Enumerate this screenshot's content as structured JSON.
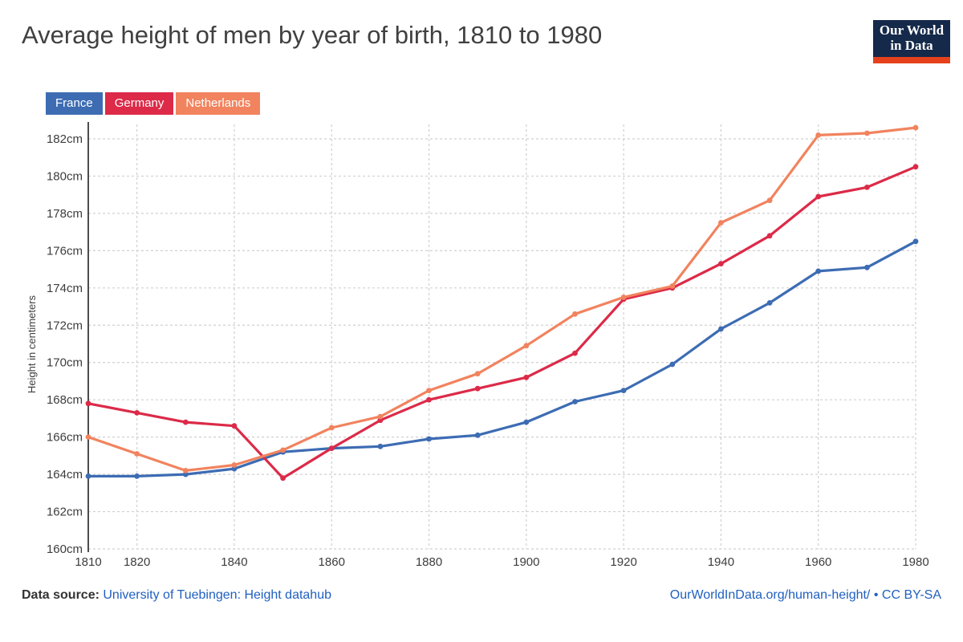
{
  "header": {
    "title": "Average height of men by year of birth, 1810 to 1980",
    "logo": {
      "line1": "Our World",
      "line2": "in Data",
      "bg_color": "#15294a",
      "bar_color": "#e5411c"
    }
  },
  "legend": {
    "items": [
      {
        "label": "France",
        "color": "#3d6cb3"
      },
      {
        "label": "Germany",
        "color": "#dc2a48"
      },
      {
        "label": "Netherlands",
        "color": "#f1835e"
      }
    ]
  },
  "chart_data": {
    "type": "line",
    "title": "Average height of men by year of birth, 1810 to 1980",
    "xlabel": "",
    "ylabel": "Height in centimeters",
    "x": [
      1810,
      1820,
      1830,
      1840,
      1850,
      1860,
      1870,
      1880,
      1890,
      1900,
      1910,
      1920,
      1930,
      1940,
      1950,
      1960,
      1970,
      1980
    ],
    "series": [
      {
        "name": "France",
        "color": "#3d6cb3",
        "values": [
          163.9,
          163.9,
          164.0,
          164.3,
          165.2,
          165.4,
          165.5,
          165.9,
          166.1,
          166.8,
          167.9,
          168.5,
          169.9,
          171.8,
          173.2,
          174.9,
          175.1,
          176.5
        ]
      },
      {
        "name": "Germany",
        "color": "#dc2a48",
        "values": [
          167.8,
          167.3,
          166.8,
          166.6,
          163.8,
          165.4,
          166.9,
          168.0,
          168.6,
          169.2,
          170.5,
          173.4,
          174.0,
          175.3,
          176.8,
          178.9,
          179.4,
          180.5
        ]
      },
      {
        "name": "Netherlands",
        "color": "#f1835e",
        "values": [
          166.0,
          165.1,
          164.2,
          164.5,
          165.3,
          166.5,
          167.1,
          168.5,
          169.4,
          170.9,
          172.6,
          173.5,
          174.1,
          177.5,
          178.7,
          182.2,
          182.3,
          182.6
        ]
      }
    ],
    "xlim": [
      1810,
      1980
    ],
    "ylim": [
      160,
      182
    ],
    "yticks": [
      160,
      162,
      164,
      166,
      168,
      170,
      172,
      174,
      176,
      178,
      180,
      182
    ],
    "ytick_suffix": "cm",
    "xtick_labels": [
      1810,
      1820,
      1840,
      1860,
      1880,
      1900,
      1920,
      1940,
      1960,
      1980
    ],
    "x_gridlines": [
      1820,
      1840,
      1860,
      1880,
      1900,
      1920,
      1940,
      1960,
      1980
    ],
    "grid": true,
    "legend_position": "top-left",
    "grid_color": "#d0d0d0",
    "axis_color": "#4d4d4d",
    "tick_color": "#3d3d3d"
  },
  "footer": {
    "source_label": "Data source:",
    "source_link": "University of Tuebingen: Height datahub",
    "site_link": "OurWorldInData.org/human-height/",
    "separator": "•",
    "license": "CC BY-SA",
    "link_color": "#2060c0"
  }
}
